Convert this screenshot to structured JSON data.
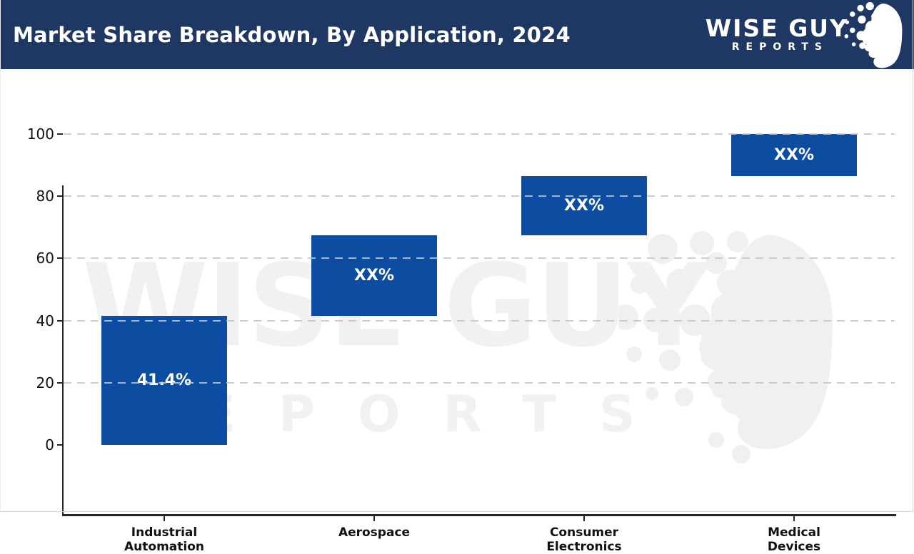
{
  "header": {
    "title": "Market Share Breakdown, By Application, 2024",
    "bg_color": "#1e3763",
    "logo": {
      "line1": "WISE GUY",
      "line2": "REPORTS"
    }
  },
  "watermark": {
    "line1": "WISE GUY.",
    "line2": "REPORTS"
  },
  "chart_data": {
    "type": "bar",
    "subtype": "waterfall",
    "title": "Market Share Breakdown, By Application, 2024",
    "categories": [
      "Industrial Automation",
      "Aerospace",
      "Consumer Electronics",
      "Medical Devices"
    ],
    "category_lines": [
      [
        "Industrial",
        "Automation"
      ],
      [
        "Aerospace"
      ],
      [
        "Consumer",
        "Electronics"
      ],
      [
        "Medical",
        "Devices"
      ]
    ],
    "segments": [
      {
        "category": "Industrial Automation",
        "start": 0,
        "end": 41.4,
        "value_label": "41.4%"
      },
      {
        "category": "Aerospace",
        "start": 41.4,
        "end": 67.5,
        "value_label": "XX%"
      },
      {
        "category": "Consumer Electronics",
        "start": 67.5,
        "end": 86.5,
        "value_label": "XX%"
      },
      {
        "category": "Medical Devices",
        "start": 86.5,
        "end": 100,
        "value_label": "XX%"
      }
    ],
    "ylim": [
      0,
      100
    ],
    "yticks": [
      0,
      20,
      40,
      60,
      80,
      100
    ],
    "xlabel": "",
    "ylabel": "",
    "grid": "horizontal-dashed",
    "legend": "none",
    "bar_color": "#0c4da2",
    "bar_label_color": "#ffffff"
  }
}
